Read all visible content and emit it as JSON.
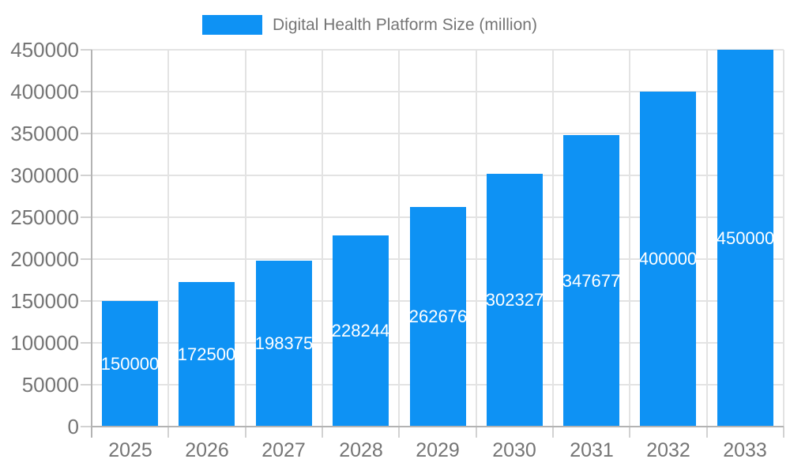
{
  "chart_data": {
    "type": "bar",
    "title": "Digital Health Platform Size (million)",
    "legend": {
      "label": "Digital Health Platform Size (million)",
      "position": "top"
    },
    "categories": [
      "2025",
      "2026",
      "2027",
      "2028",
      "2029",
      "2030",
      "2031",
      "2032",
      "2033"
    ],
    "series": [
      {
        "name": "Digital Health Platform Size (million)",
        "values": [
          150000,
          172500,
          198375,
          228244,
          262676,
          302327,
          347677,
          400000,
          450000
        ]
      }
    ],
    "value_labels_shown": true,
    "xlabel": "",
    "ylabel": "",
    "ylim": [
      0,
      450000
    ],
    "ytick_step": 50000,
    "grid": true
  },
  "colors": {
    "bar": "#0e92f4",
    "value_label_text": "#ffffff",
    "axis_text": "#757575",
    "gridline": "#e3e3e3",
    "tick_mark": "#d2d2d2",
    "axis_line": "#b3b3b3",
    "background": "#ffffff"
  }
}
